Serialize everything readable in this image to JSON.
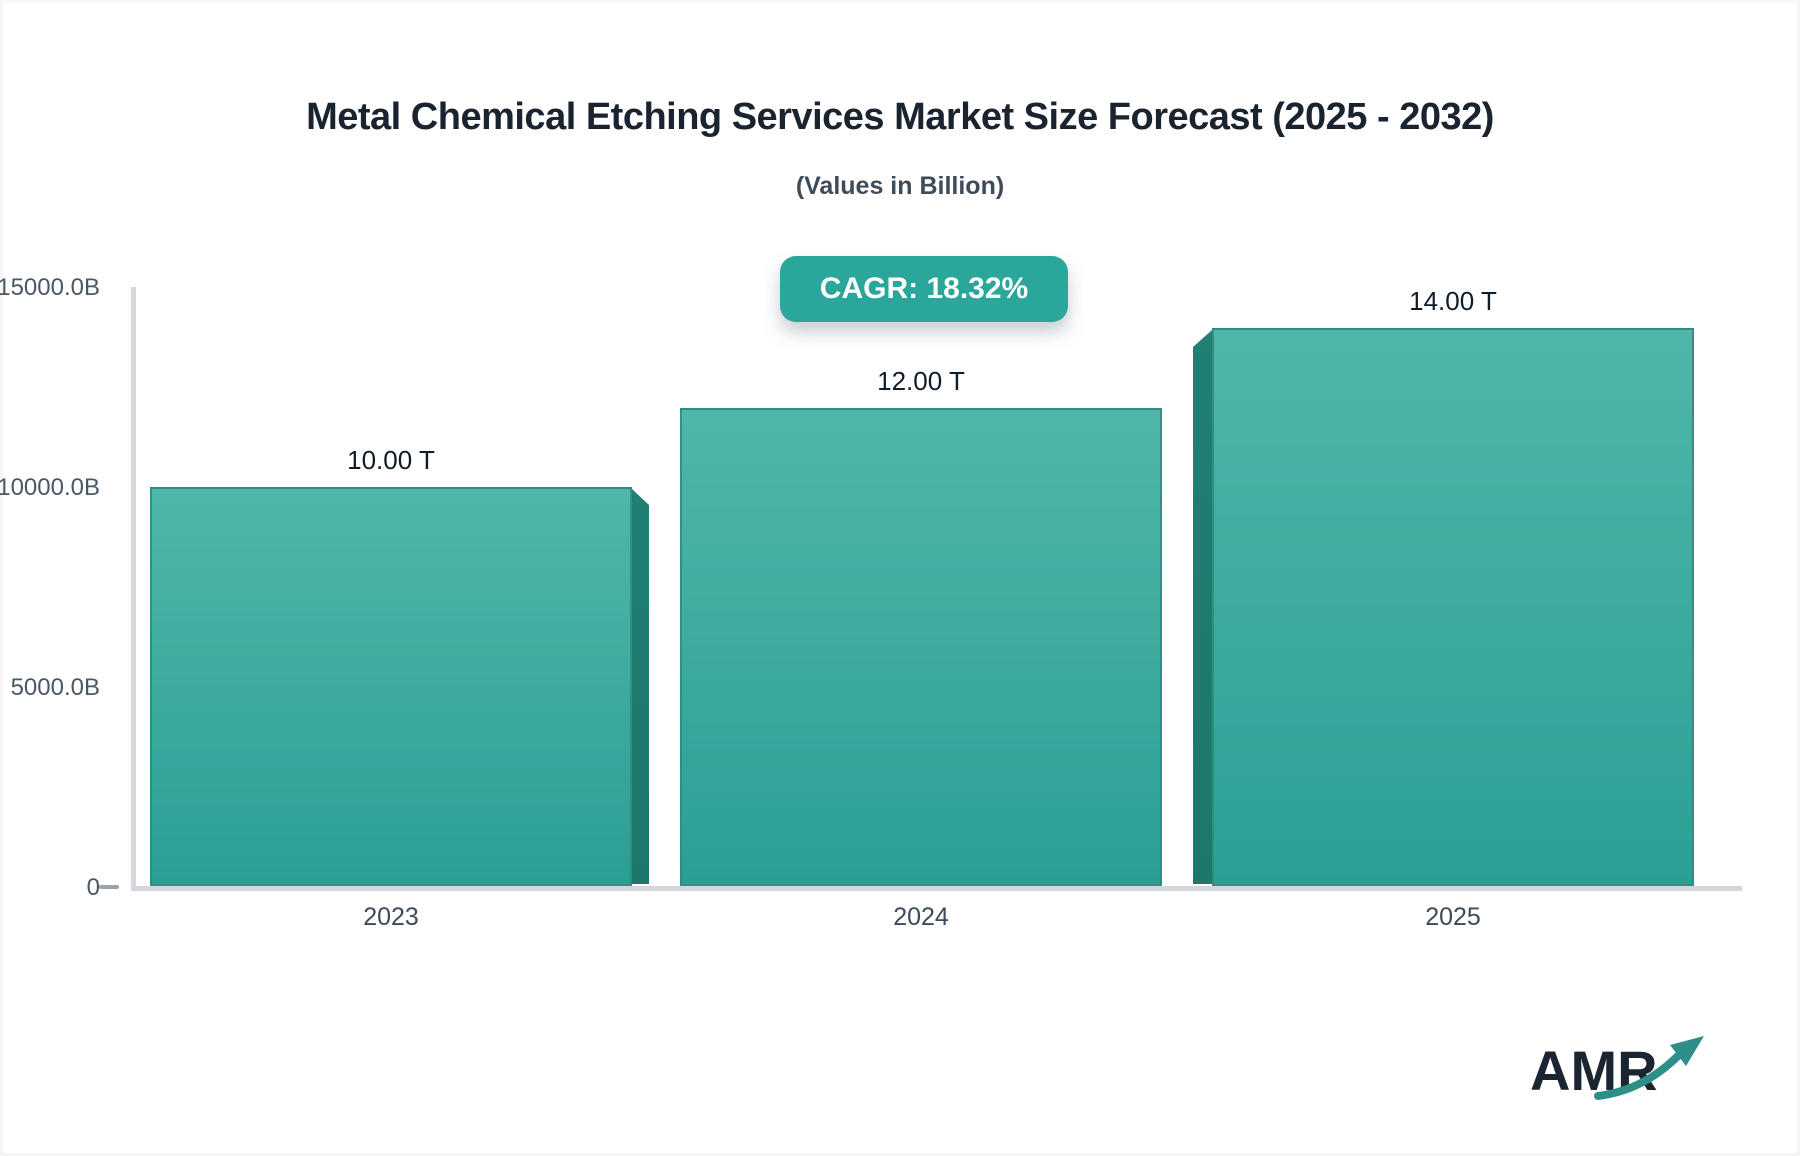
{
  "header": {
    "title": "Metal Chemical Etching Services Market Size Forecast (2025 - 2032)",
    "subtitle": "(Values in Billion)",
    "cagr_badge": "CAGR: 18.32%"
  },
  "chart_data": {
    "type": "bar",
    "title": "Metal Chemical Etching Services Market Size Forecast (2025 - 2032)",
    "subtitle": "(Values in Billion)",
    "categories": [
      "2023",
      "2024",
      "2025"
    ],
    "values": [
      10000,
      12000,
      14000
    ],
    "bar_labels": [
      "10.00 T",
      "12.00 T",
      "14.00 T"
    ],
    "yticks": [
      "15000.0B",
      "10000.0B",
      "5000.0B",
      "0"
    ],
    "ylim": [
      0,
      15000
    ],
    "ylabel": "",
    "xlabel": "",
    "grid": false,
    "legend": "none",
    "annotation": "CAGR: 18.32%",
    "colors": {
      "bar_face_top": "#4fb6a9",
      "bar_face_bottom": "#2aa093",
      "bar_side": "#1f7a6e",
      "accent_badge": "#2aa69a",
      "axis_line": "#d5d8dc",
      "tick_text": "#4a5866",
      "title_text": "#1a2330"
    }
  },
  "branding": {
    "logo_text": "AMR"
  }
}
